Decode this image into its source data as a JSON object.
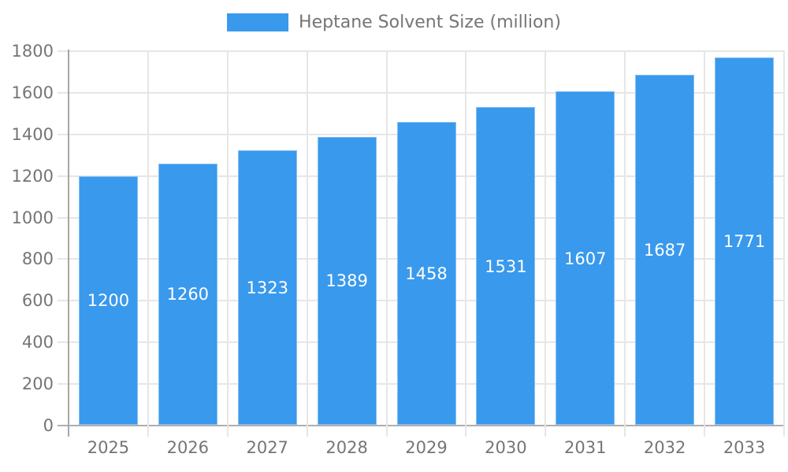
{
  "chart_data": {
    "type": "bar",
    "title": "Heptane Solvent Size (million)",
    "legend": {
      "position": "top",
      "entries": [
        "Heptane Solvent Size (million)"
      ]
    },
    "categories": [
      "2025",
      "2026",
      "2027",
      "2028",
      "2029",
      "2030",
      "2031",
      "2032",
      "2033"
    ],
    "series": [
      {
        "name": "Heptane Solvent Size (million)",
        "values": [
          1200,
          1260,
          1323,
          1389,
          1458,
          1531,
          1607,
          1687,
          1771
        ]
      }
    ],
    "bar_value_labels": [
      "1200",
      "1260",
      "1323",
      "1389",
      "1458",
      "1531",
      "1607",
      "1687",
      "1771"
    ],
    "xlabel": "",
    "ylabel": "",
    "ylim": [
      0,
      1800
    ],
    "y_tick_step": 200,
    "y_tick_labels": [
      "0",
      "200",
      "400",
      "600",
      "800",
      "1000",
      "1200",
      "1400",
      "1600",
      "1800"
    ],
    "grid": true
  },
  "colors": {
    "bar_fill": "#3999ec",
    "bar_label_text": "#ffffff",
    "gridline": "#e6e6e6",
    "y_axis_line": "#a6a6a6",
    "x_axis_line": "#aeaeae",
    "tick_label_text": "#757575",
    "legend_text": "#757575",
    "background": "#ffffff"
  }
}
